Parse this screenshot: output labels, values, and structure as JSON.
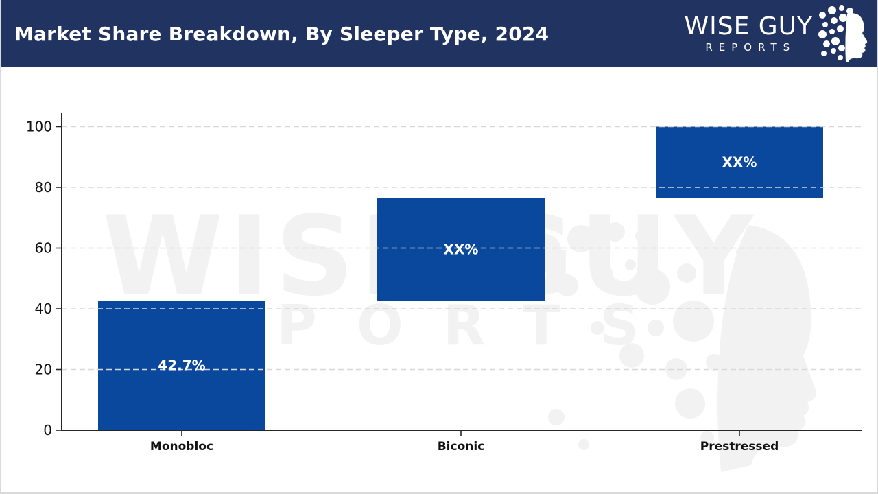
{
  "header": {
    "logo": {
      "line1": "WISE GUY",
      "line2": "REPORTS"
    }
  },
  "watermark": {
    "line1": "WISE GUY",
    "line2": "REPORTS"
  },
  "chart_data": {
    "type": "bar",
    "subtype": "waterfall",
    "title": "Market Share Breakdown, By Sleeper Type, 2024",
    "categories": [
      "Monobloc",
      "Biconic",
      "Prestressed"
    ],
    "bars": [
      {
        "category": "Monobloc",
        "start": 0,
        "end": 42.7,
        "label": "42.7%"
      },
      {
        "category": "Biconic",
        "start": 42.7,
        "end": 76.4,
        "label": "XX%"
      },
      {
        "category": "Prestressed",
        "start": 76.4,
        "end": 100,
        "label": "XX%"
      }
    ],
    "ylim": [
      0,
      100
    ],
    "yticks": [
      0,
      20,
      40,
      60,
      80,
      100
    ],
    "grid": "horizontal-dashed",
    "legend": "none",
    "colors": {
      "bar": "#0a489e",
      "bar_label": "#ffffff",
      "header_bg": "#203361",
      "gridline": "#d8d8d8",
      "axis": "#262626",
      "tick_label": "#111111"
    }
  }
}
